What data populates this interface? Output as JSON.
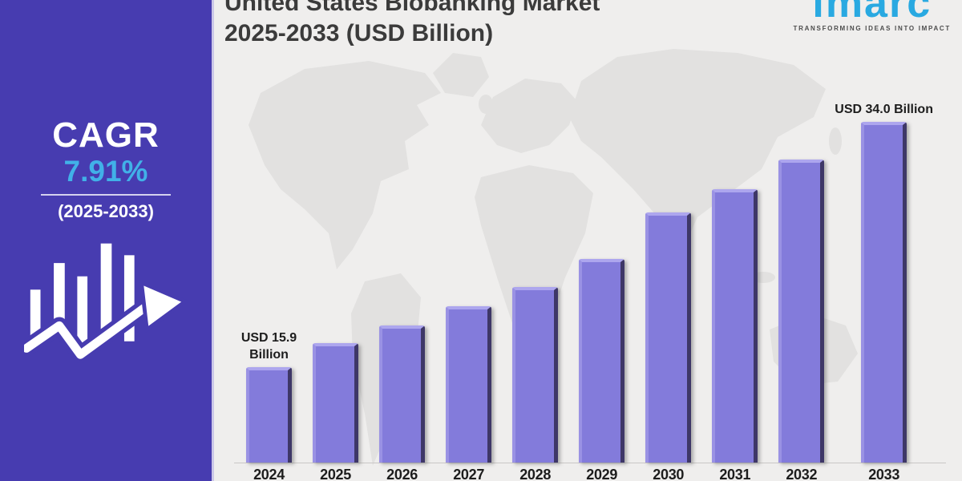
{
  "header": {
    "title_line1": "United States Biobanking Market",
    "title_line2": "2025-2033 (USD Billion)"
  },
  "logo": {
    "name": "imarc",
    "tagline": "TRANSFORMING IDEAS INTO IMPACT",
    "color": "#29a9e1"
  },
  "sidebar": {
    "cagr_label": "CAGR",
    "cagr_value": "7.91%",
    "cagr_period": "(2025-2033)",
    "bg_color": "#473cb0",
    "accent_color": "#41b1e8",
    "icon": "growth-chart-arrow-icon"
  },
  "chart_data": {
    "type": "bar",
    "title": "United States Biobanking Market 2025-2033 (USD Billion)",
    "categories": [
      "2024",
      "2025",
      "2026",
      "2027",
      "2028",
      "2029",
      "2030",
      "2031",
      "2032",
      "2033"
    ],
    "values": [
      15.9,
      17.7,
      19.0,
      20.4,
      21.8,
      23.9,
      27.3,
      29.0,
      31.2,
      34.0
    ],
    "data_labels": {
      "0": "USD 15.9 Billion",
      "9": "USD 34.0 Billion"
    },
    "unit": "USD Billion",
    "xlabel": "",
    "ylabel": "",
    "ylim": [
      8.9,
      34.5
    ],
    "grid": false,
    "legend": false,
    "y_axis_visible": false,
    "bar_color": "#837bdb",
    "background": "world-map"
  }
}
